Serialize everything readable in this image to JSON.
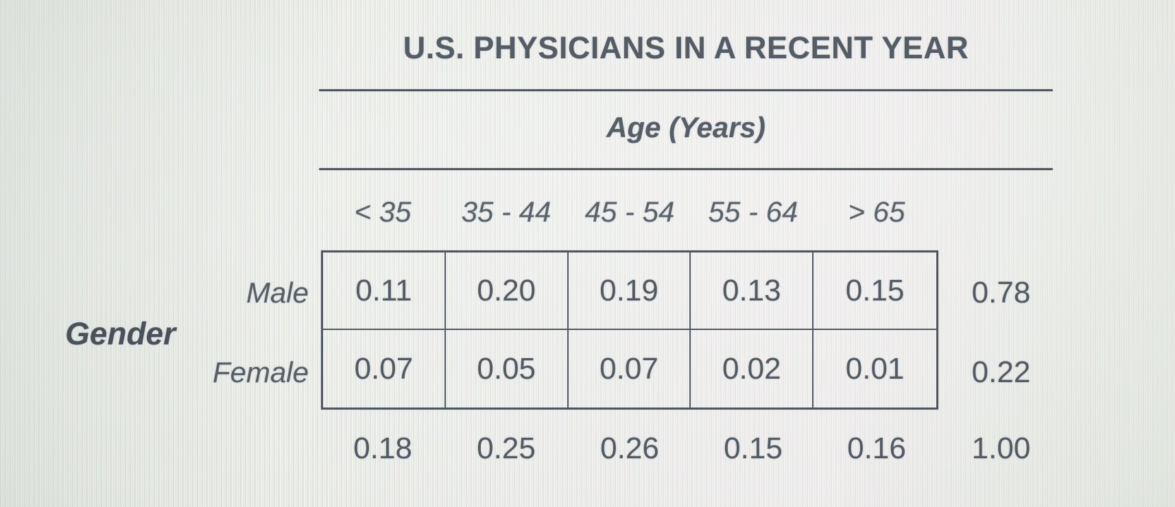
{
  "colors": {
    "background": "#e5e8e3",
    "text": "#525b64",
    "line": "#4d565f"
  },
  "chart_data": {
    "type": "table",
    "title": "U.S. PHYSICIANS IN A RECENT YEAR",
    "column_group": "Age (Years)",
    "row_group": "Gender",
    "columns": [
      "< 35",
      "35 - 44",
      "45 - 54",
      "55 - 64",
      "> 65"
    ],
    "rows": [
      {
        "label": "Male",
        "values": [
          "0.11",
          "0.20",
          "0.19",
          "0.13",
          "0.15"
        ],
        "total": "0.78"
      },
      {
        "label": "Female",
        "values": [
          "0.07",
          "0.05",
          "0.07",
          "0.02",
          "0.01"
        ],
        "total": "0.22"
      }
    ],
    "column_totals": [
      "0.18",
      "0.25",
      "0.26",
      "0.15",
      "0.16"
    ],
    "grand_total": "1.00"
  }
}
